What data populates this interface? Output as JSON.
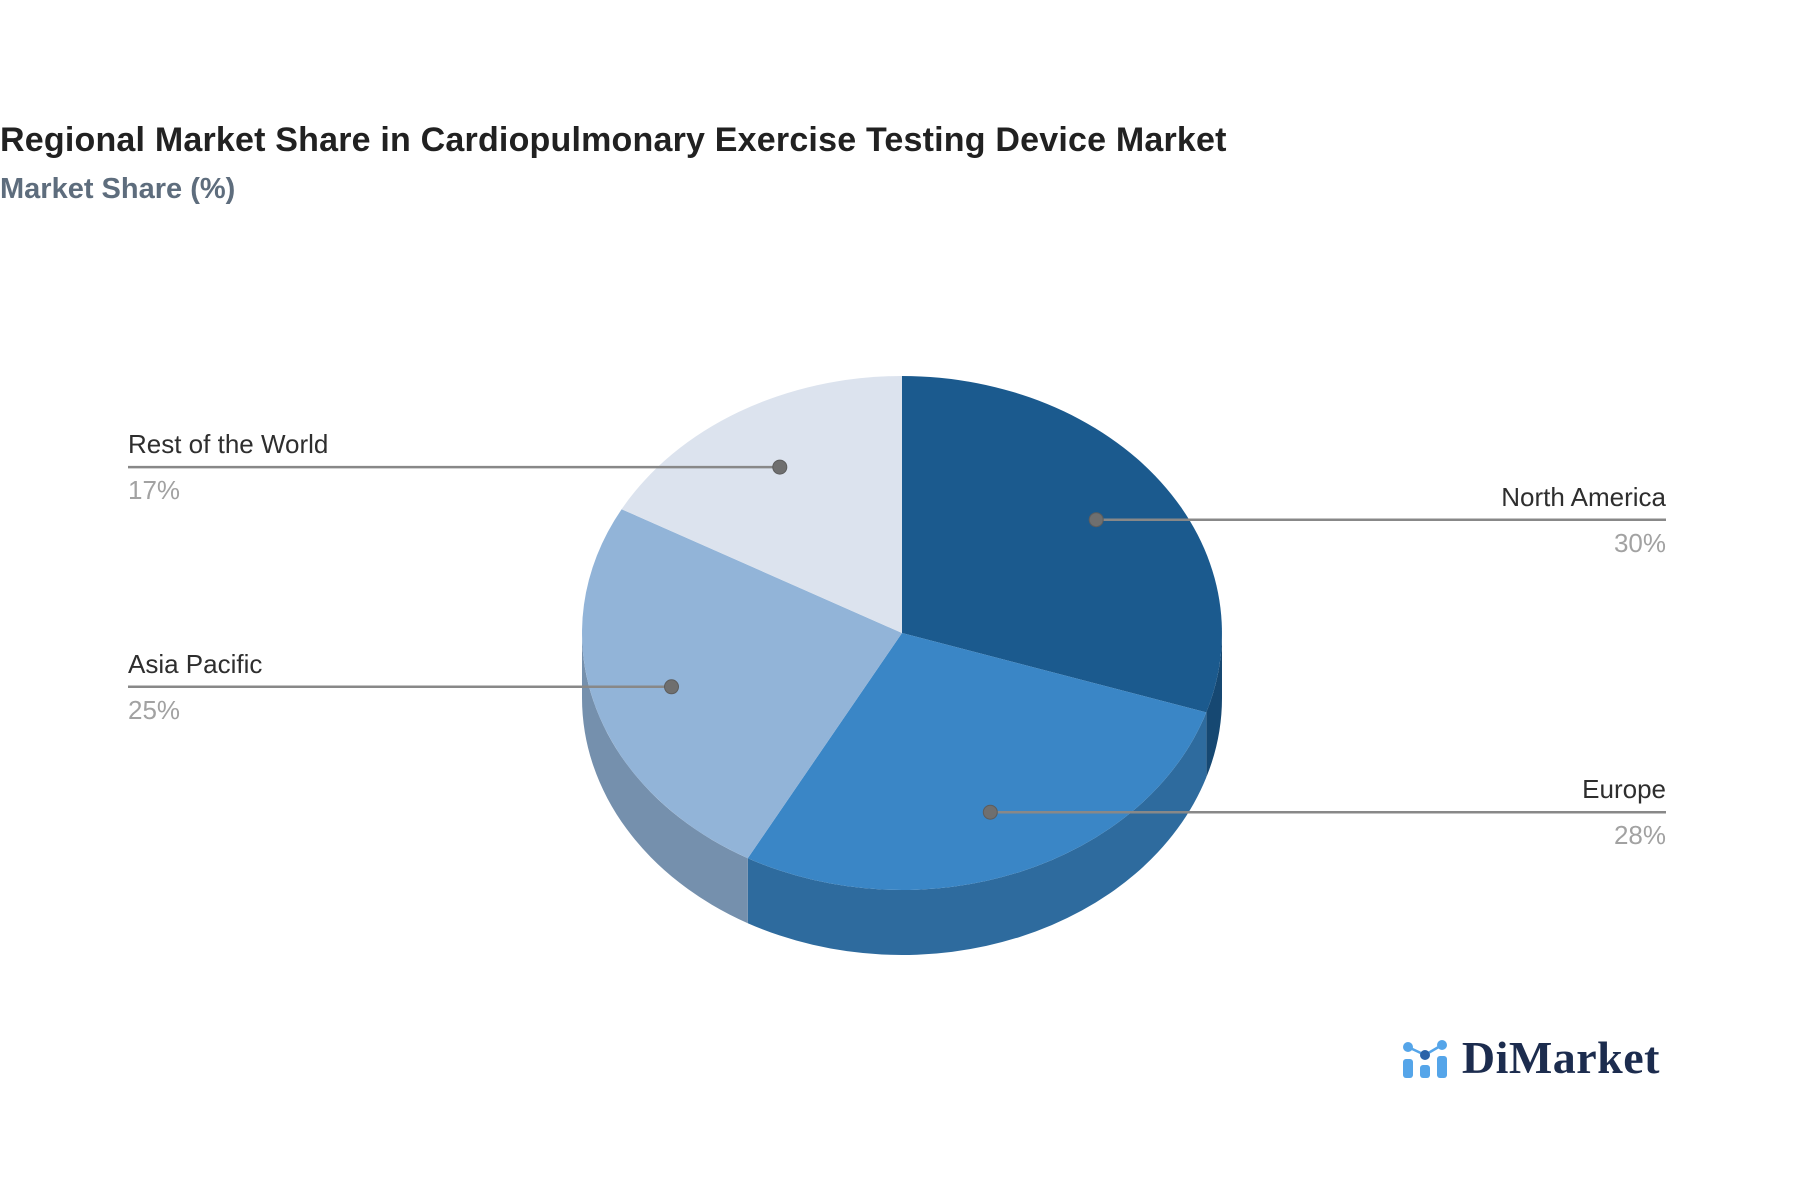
{
  "header": {
    "title": "Regional Market Share in Cardiopulmonary Exercise Testing Device Market",
    "subtitle": "Market Share (%)"
  },
  "chart_data": {
    "type": "pie",
    "style": "3d",
    "title": "Regional Market Share in Cardiopulmonary Exercise Testing Device Market",
    "subtitle": "Market Share (%)",
    "unit": "%",
    "start_angle": "top",
    "clockwise": true,
    "legend": "none",
    "label_layout": "callout-lines",
    "slices": [
      {
        "label": "North America",
        "value": 30,
        "pct_label": "30%",
        "color": "#1b5a8e"
      },
      {
        "label": "Europe",
        "value": 28,
        "pct_label": "28%",
        "color": "#3a86c6"
      },
      {
        "label": "Asia Pacific",
        "value": 25,
        "pct_label": "25%",
        "color": "#92b4d8"
      },
      {
        "label": "Rest of the World",
        "value": 17,
        "pct_label": "17%",
        "color": "#dce3ee"
      }
    ],
    "leader_line_color": "#888888",
    "leader_dot_color": "#6f6f6f",
    "label_name_color": "#2e2e2e",
    "label_value_color": "#a2a2a2"
  },
  "branding": {
    "logo_text": "DiMarket",
    "logo_icon": "bar-chart-trend-icon",
    "logo_text_color": "#1c2c4e",
    "logo_icon_color": "#55a5e9",
    "logo_icon_dot_color": "#2b63a8"
  }
}
